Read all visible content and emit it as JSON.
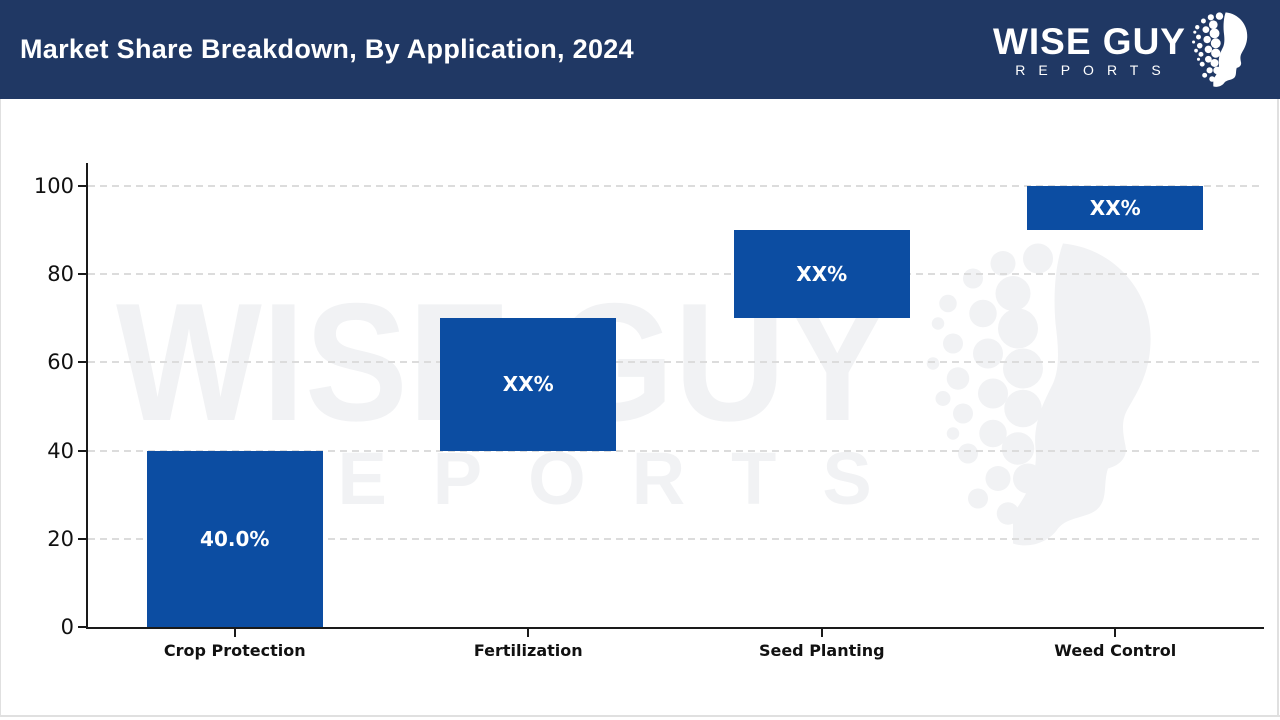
{
  "header": {
    "title": "Market Share Breakdown, By Application, 2024",
    "logo": {
      "line1": "WISE GUY",
      "line2": "REPORTS",
      "icon": "head-silhouette-icon"
    }
  },
  "watermark": {
    "line1": "WISE GUY",
    "line2": "REPORTS"
  },
  "colors": {
    "header_bg": "#203864",
    "header_text": "#ffffff",
    "bar": "#0c4da2",
    "bar_label": "#ffffff",
    "axis": "#1a1a1a",
    "grid": "#dcdcdc",
    "tick_label": "#111111",
    "watermark": "#f1f2f4",
    "page_border": "#e0e0e0"
  },
  "chart_data": {
    "type": "bar",
    "variant": "waterfall",
    "title": "Market Share Breakdown, By Application, 2024",
    "categories": [
      "Crop Protection",
      "Fertilization",
      "Seed Planting",
      "Weed Control"
    ],
    "series": [
      {
        "name": "Market Share (%)",
        "segments": [
          {
            "category": "Crop Protection",
            "start": 0,
            "end": 40,
            "value": 40.0,
            "label": "40.0%"
          },
          {
            "category": "Fertilization",
            "start": 40,
            "end": 70,
            "value": 30,
            "label": "XX%"
          },
          {
            "category": "Seed Planting",
            "start": 70,
            "end": 90,
            "value": 20,
            "label": "XX%"
          },
          {
            "category": "Weed Control",
            "start": 90,
            "end": 100,
            "value": 10,
            "label": "XX%"
          }
        ]
      }
    ],
    "xlabel": "",
    "ylabel": "",
    "yticks": [
      0,
      20,
      40,
      60,
      80,
      100
    ],
    "ylim": [
      0,
      105
    ],
    "grid": {
      "axis": "y",
      "style": "dashed",
      "on": true
    },
    "legend": {
      "visible": false
    }
  }
}
